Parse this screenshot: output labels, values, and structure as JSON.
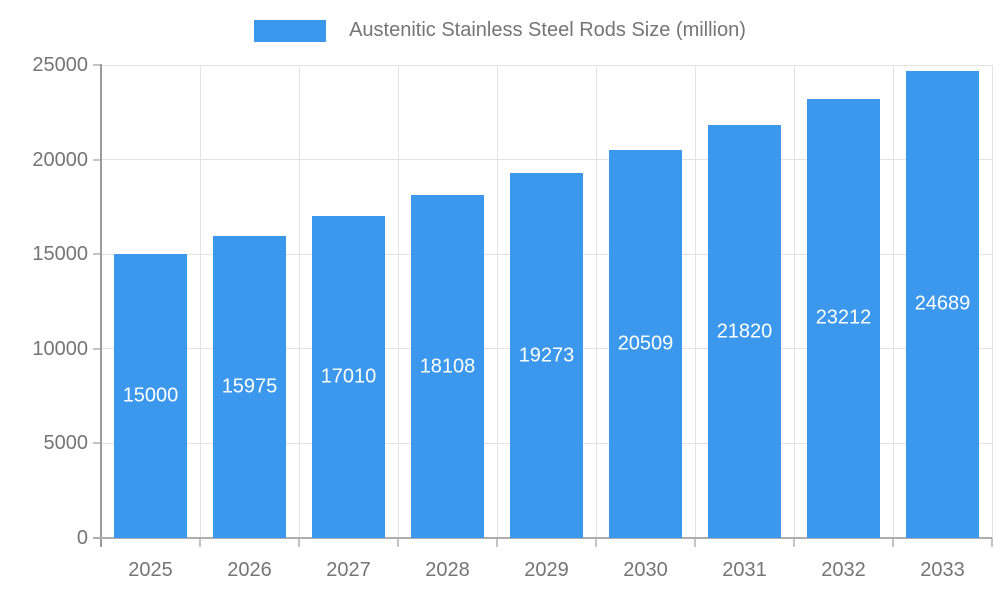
{
  "legend": {
    "label": "Austenitic Stainless Steel Rods Size (million)"
  },
  "colors": {
    "bar": "#3b98ed",
    "grid": "#e3e3e3",
    "y_axis": "#9a9a9a",
    "baseline": "#aeaeae",
    "tick": "#c4c4c4",
    "axis_text": "#757575",
    "value_label": "#ffffff",
    "background": "#ffffff"
  },
  "chart_data": {
    "type": "bar",
    "title": "Austenitic Stainless Steel Rods Size (million)",
    "categories": [
      "2025",
      "2026",
      "2027",
      "2028",
      "2029",
      "2030",
      "2031",
      "2032",
      "2033"
    ],
    "values": [
      15000,
      15975,
      17010,
      18108,
      19273,
      20509,
      21820,
      23212,
      24689
    ],
    "xlabel": "",
    "ylabel": "",
    "ylim": [
      0,
      25000
    ],
    "yticks": [
      0,
      5000,
      10000,
      15000,
      20000,
      25000
    ],
    "grid": true,
    "legend_position": "top-center",
    "value_labels": "inside-center-white"
  }
}
